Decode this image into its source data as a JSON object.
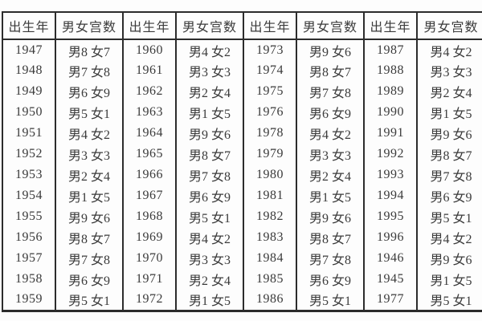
{
  "table": {
    "columns": [
      "出生年",
      "男女宫数",
      "出生年",
      "男女宫数",
      "出生年",
      "男女宫数",
      "出生年",
      "男女宫数"
    ],
    "rows": [
      [
        "1947",
        "男8 女7",
        "1960",
        "男4 女2",
        "1973",
        "男9 女6",
        "1987",
        "男4 女2"
      ],
      [
        "1948",
        "男7 女8",
        "1961",
        "男3 女3",
        "1974",
        "男8 女7",
        "1988",
        "男3 女3"
      ],
      [
        "1949",
        "男6 女9",
        "1962",
        "男2 女4",
        "1975",
        "男7 女8",
        "1989",
        "男2 女4"
      ],
      [
        "1950",
        "男5 女1",
        "1963",
        "男1 女5",
        "1976",
        "男6 女9",
        "1990",
        "男1 女5"
      ],
      [
        "1951",
        "男4 女2",
        "1964",
        "男9 女6",
        "1978",
        "男4 女2",
        "1991",
        "男9 女6"
      ],
      [
        "1952",
        "男3 女3",
        "1965",
        "男8 女7",
        "1979",
        "男3 女3",
        "1992",
        "男8 女7"
      ],
      [
        "1953",
        "男2 女4",
        "1966",
        "男7 女8",
        "1980",
        "男2 女4",
        "1993",
        "男7 女8"
      ],
      [
        "1954",
        "男1 女5",
        "1967",
        "男6 女9",
        "1981",
        "男1 女5",
        "1994",
        "男6 女9"
      ],
      [
        "1955",
        "男9 女6",
        "1968",
        "男5 女1",
        "1982",
        "男9 女6",
        "1995",
        "男5 女1"
      ],
      [
        "1956",
        "男8 女7",
        "1969",
        "男4 女2",
        "1983",
        "男8 女7",
        "1996",
        "男4 女2"
      ],
      [
        "1957",
        "男7 女8",
        "1970",
        "男3 女3",
        "1984",
        "男7 女8",
        "1946",
        "男9 女6"
      ],
      [
        "1958",
        "男6 女9",
        "1971",
        "男2 女4",
        "1985",
        "男6 女9",
        "1945",
        "男1 女5"
      ],
      [
        "1959",
        "男5 女1",
        "1972",
        "男1 女5",
        "1986",
        "男5 女1",
        "1977",
        "男5 女1"
      ]
    ]
  }
}
